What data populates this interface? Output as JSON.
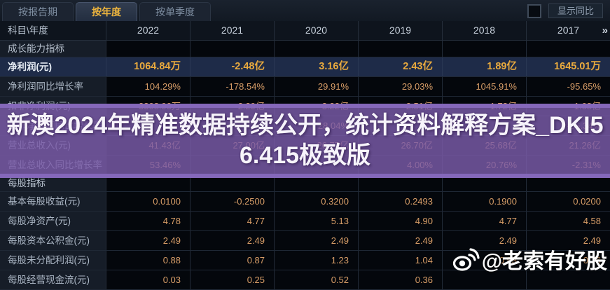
{
  "tabs": {
    "items": [
      {
        "label": "按报告期",
        "active": false
      },
      {
        "label": "按年度",
        "active": true
      },
      {
        "label": "按单季度",
        "active": false
      }
    ]
  },
  "yoy_toggle": {
    "label": "显示同比",
    "checked": false
  },
  "table": {
    "corner_header": "科目\\年度",
    "year_columns": [
      "2022",
      "2021",
      "2020",
      "2019",
      "2018",
      "2017"
    ],
    "more_icon": "»",
    "rows": [
      {
        "type": "section",
        "label": "成长能力指标",
        "values": [
          "",
          "",
          "",
          "",
          "",
          ""
        ]
      },
      {
        "type": "data",
        "label": "净利润(元)",
        "highlight": true,
        "values": [
          "1064.84万",
          "-2.48亿",
          "3.16亿",
          "2.43亿",
          "1.89亿",
          "1645.01万"
        ]
      },
      {
        "type": "data",
        "label": "净利润同比增长率",
        "values": [
          "104.29%",
          "-178.54%",
          "29.91%",
          "29.03%",
          "1045.91%",
          "-95.65%"
        ]
      },
      {
        "type": "data",
        "label": "扣非净利润(元)",
        "values": [
          "3308.90万",
          "-2.29亿",
          "3.22亿",
          "2.51亿",
          "1.72亿",
          "1.68亿"
        ]
      },
      {
        "type": "data",
        "label": "扣非净利润同比增长率",
        "values": [
          "",
          "",
          "28.04%",
          "",
          "",
          "-56.34%"
        ]
      },
      {
        "type": "data",
        "label": "营业总收入(元)",
        "values": [
          "41.43亿",
          "27.00亿",
          "26.77亿",
          "26.70亿",
          "25.68亿",
          "21.26亿"
        ]
      },
      {
        "type": "data",
        "label": "营业总收入同比增长率",
        "values": [
          "53.46%",
          "",
          "",
          "4.00%",
          "20.76%",
          "-2.31%"
        ]
      },
      {
        "type": "section",
        "label": "每股指标",
        "values": [
          "",
          "",
          "",
          "",
          "",
          ""
        ]
      },
      {
        "type": "data",
        "label": "基本每股收益(元)",
        "values": [
          "0.0100",
          "-0.2500",
          "0.3200",
          "0.2493",
          "0.1900",
          "0.0200"
        ]
      },
      {
        "type": "data",
        "label": "每股净资产(元)",
        "values": [
          "4.78",
          "4.77",
          "5.13",
          "4.90",
          "4.77",
          "4.58"
        ]
      },
      {
        "type": "data",
        "label": "每股资本公积金(元)",
        "values": [
          "2.49",
          "2.49",
          "2.49",
          "2.49",
          "2.49",
          "2.49"
        ]
      },
      {
        "type": "data",
        "label": "每股未分配利润(元)",
        "values": [
          "0.88",
          "0.87",
          "1.23",
          "1.04",
          "0.93",
          "0.76"
        ]
      },
      {
        "type": "data",
        "label": "每股经营现金流(元)",
        "values": [
          "0.03",
          "0.25",
          "0.52",
          "0.36",
          "",
          ""
        ]
      }
    ]
  },
  "overlay": {
    "full_text": "新澳2024年精准数据持续公开，统计资料解释方案_DKI56.415极致版",
    "lines": [
      "新澳2024年精准数据持续公开，统计资料解释方案_DKI5",
      "6.415极致版"
    ]
  },
  "watermark": {
    "icon": "weibo",
    "text": "@老索有好股"
  },
  "colors": {
    "accent_yellow": "#ecb43e",
    "value_orange": "#d89e68",
    "highlight_row_bg": "#1e2b48",
    "banner_purple": "#7b5ca9",
    "banner_border": "#886abe",
    "banner_text": "#f7f4fb"
  }
}
